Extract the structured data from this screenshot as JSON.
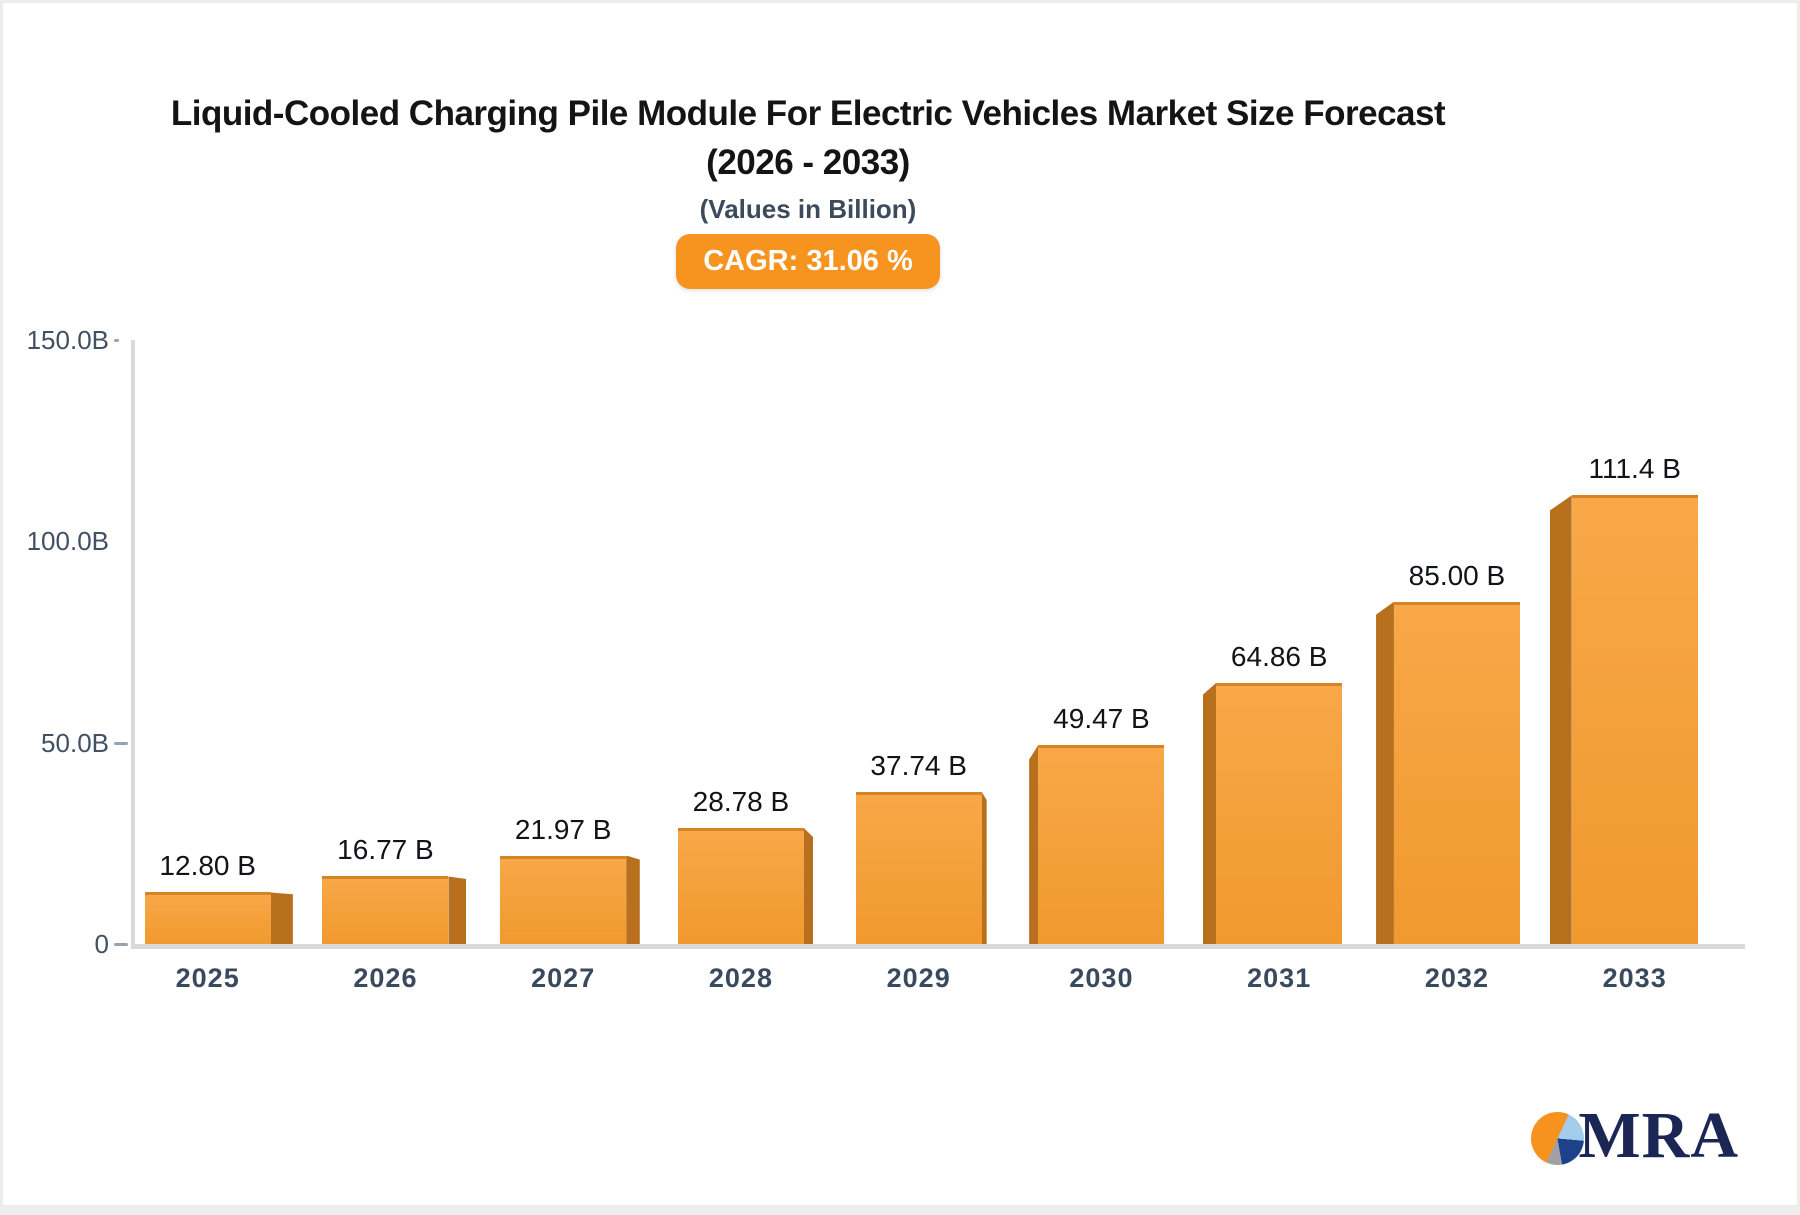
{
  "header": {
    "title_line1": "Liquid-Cooled Charging Pile Module For Electric Vehicles Market Size Forecast",
    "title_line2": "(2026 - 2033)",
    "subtitle": "(Values in Billion)",
    "cagr_label": "CAGR: 31.06 %"
  },
  "chart_data": {
    "type": "bar",
    "title": "Liquid-Cooled Charging Pile Module For Electric Vehicles Market Size Forecast (2026 - 2033)",
    "subtitle": "(Values in Billion)",
    "cagr_percent": 31.06,
    "categories": [
      "2025",
      "2026",
      "2027",
      "2028",
      "2029",
      "2030",
      "2031",
      "2032",
      "2033"
    ],
    "values": [
      12.8,
      16.77,
      21.97,
      28.78,
      37.74,
      49.47,
      64.86,
      85.0,
      111.4
    ],
    "value_labels": [
      "12.80 B",
      "16.77 B",
      "21.97 B",
      "28.78 B",
      "37.74 B",
      "49.47 B",
      "64.86 B",
      "85.00 B",
      "111.4 B"
    ],
    "xlabel": "",
    "ylabel": "",
    "ylim": [
      0,
      150
    ],
    "grid": false,
    "legend_position": "none",
    "y_ticks": [
      {
        "label": "150.0B",
        "value": 150,
        "tick_width": 5
      },
      {
        "label": "100.0B",
        "value": 100,
        "tick_width": 0
      },
      {
        "label": "50.0B",
        "value": 50,
        "tick_width": 14
      },
      {
        "label": "0",
        "value": 0,
        "tick_width": 14
      }
    ]
  },
  "colors": {
    "bar_front_top": "#f8a848",
    "bar_front_bottom": "#f0992e",
    "bar_side": "#b9701e",
    "cagr_pill_bg": "#f6941f",
    "axis_line": "#d8dadc",
    "value_label": "#101418",
    "category_label": "#3a4a5e",
    "y_label": "#415062"
  },
  "logo": {
    "text": "MRA",
    "pie_orange": "#f6921e",
    "pie_lightblue": "#a4cdeb",
    "pie_navy": "#1e4289",
    "pie_gray": "#9fa1a6",
    "text_color": "#1b2655"
  }
}
